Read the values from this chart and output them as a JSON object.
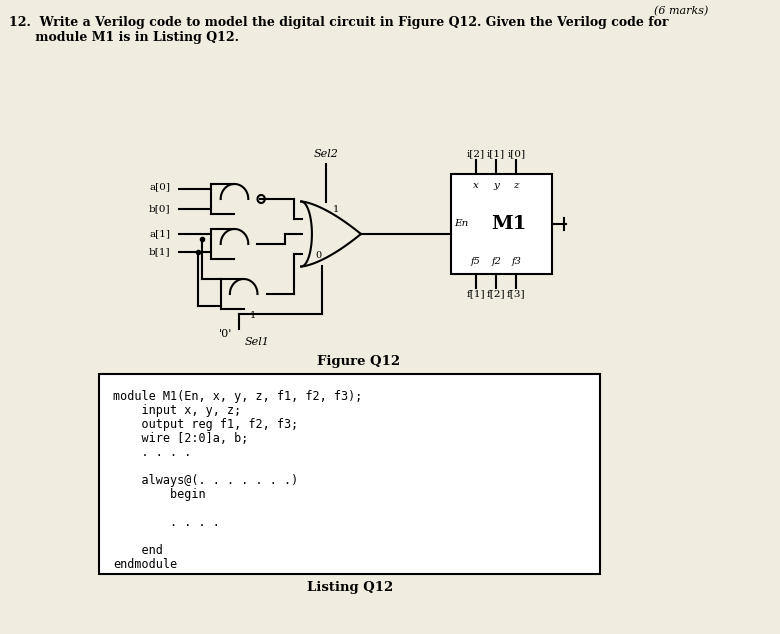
{
  "title_text": "12.  Write a Verilog code to model the digital circuit in Figure Q12. Given the Verilog code for\n      module M1 is in Listing Q12.",
  "figure_label": "Figure Q12",
  "listing_label": "Listing Q12",
  "background_color": "#f0ece0",
  "box_color": "#ffffff",
  "text_color": "#000000",
  "code_lines": [
    "module M1(En, x, y, z, f1, f2, f3);",
    "    input x, y, z;",
    "    output reg f1, f2, f3;",
    "    wire [2:0]a, b;",
    "    . . . .",
    "",
    "    always@(. . . . . . .)",
    "        begin",
    "",
    "        . . . .",
    "",
    "    end",
    "endmodule"
  ],
  "signals": {
    "a0": "a[0]",
    "b0": "b[0]",
    "a1": "a[1]",
    "b1": "b[1]",
    "sel2": "Sel2",
    "sel1": "Sel1",
    "zero": "'0'",
    "i_labels": "i[2] i[1] i[0]",
    "f_labels": "f[1] f[2] f[3]",
    "xy_labels": "x  y  z",
    "port_labels": "f5  f2  f3",
    "en_label": "En",
    "m1_label": "M1",
    "port_1_label": "1",
    "port_0_label": "0"
  }
}
